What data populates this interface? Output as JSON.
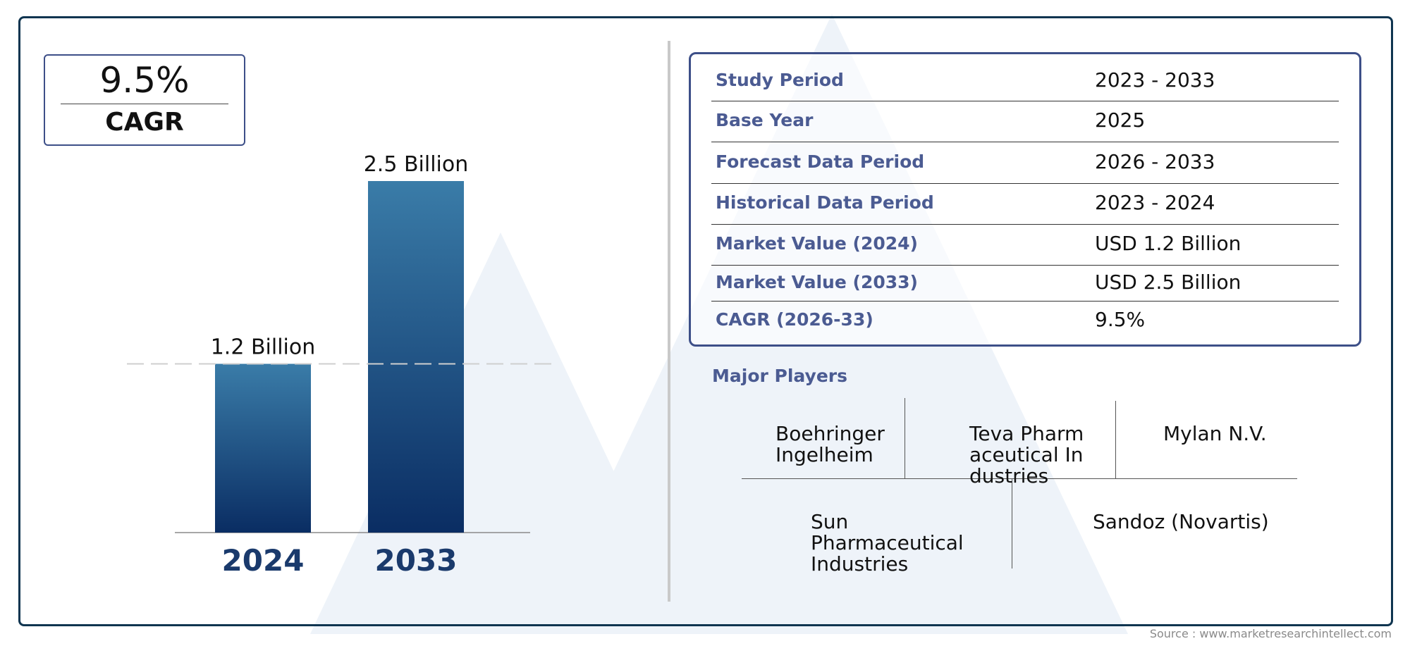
{
  "cagr": {
    "value": "9.5%",
    "label": "CAGR"
  },
  "chart_data": {
    "type": "bar",
    "categories": [
      "2024",
      "2033"
    ],
    "values": [
      1.2,
      2.5
    ],
    "value_labels": [
      "1.2 Billion",
      "2.5 Billion"
    ],
    "unit": "Billion",
    "colors": {
      "bar_top": "#3a7ca8",
      "bar_bottom": "#0a2d63",
      "category_label": "#1a3a6c"
    }
  },
  "info_table": [
    {
      "key": "Study Period",
      "value": "2023 - 2033"
    },
    {
      "key": "Base Year",
      "value": "2025"
    },
    {
      "key": "Forecast Data Period",
      "value": "2026 - 2033"
    },
    {
      "key": "Historical Data Period",
      "value": "2023 - 2024"
    },
    {
      "key": "Market Value (2024)",
      "value": "USD 1.2 Billion"
    },
    {
      "key": "Market Value (2033)",
      "value": "USD 2.5 Billion"
    },
    {
      "key": "CAGR (2026-33)",
      "value": "9.5%"
    }
  ],
  "players": {
    "title": "Major Players",
    "names": [
      "Boehringer Ingelheim",
      "Teva Pharmaceutical Industries",
      "Mylan N.V.",
      "Sun Pharmaceutical Industries",
      "Sandoz (Novartis)"
    ]
  },
  "source": "Source : www.marketresearchintellect.com",
  "colors": {
    "accent": "#4b5b92",
    "frame": "#0f3550",
    "box_border": "#3d4f88"
  }
}
